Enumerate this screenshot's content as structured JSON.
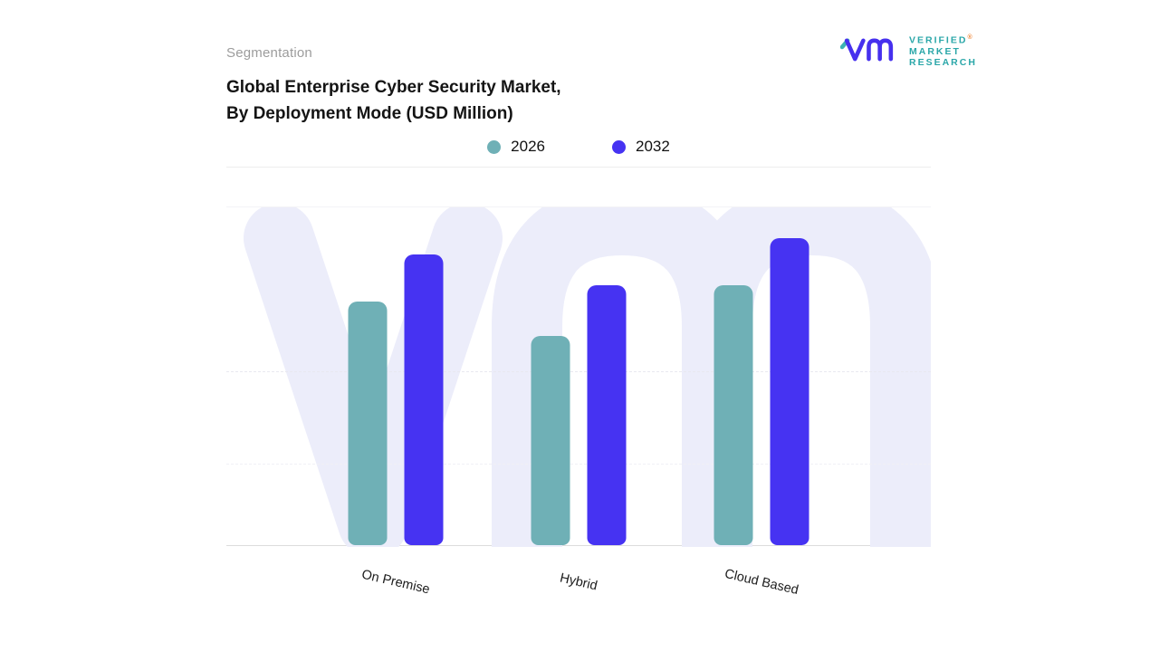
{
  "header": {
    "eyebrow": "Segmentation",
    "title_line1": "Global Enterprise Cyber Security Market,",
    "title_line2": "By Deployment Mode (USD Million)"
  },
  "logo": {
    "line1": "VERIFIED",
    "line2": "MARKET",
    "line3": "RESEARCH",
    "registered_mark": "®",
    "monogram_color": "#4630ee",
    "accent_color": "#3bb3b4",
    "text_color": "#2ba7a9"
  },
  "legend": {
    "items": [
      {
        "label": "2026",
        "color": "#6fb0b6"
      },
      {
        "label": "2032",
        "color": "#4633f2"
      }
    ]
  },
  "chart_data": {
    "type": "bar",
    "title": "Global Enterprise Cyber Security Market, By Deployment Mode (USD Million)",
    "categories": [
      "On Premise",
      "Hybrid",
      "Cloud Based"
    ],
    "series": [
      {
        "name": "2026",
        "color": "#6fb0b6",
        "values": [
          72,
          62,
          77
        ]
      },
      {
        "name": "2032",
        "color": "#4633f2",
        "values": [
          86,
          77,
          91
        ]
      }
    ],
    "ylabel": "USD Million",
    "ylim": [
      0,
      100
    ],
    "value_scale": "relative percent of plot height; numeric axis not labeled in source",
    "grid": "horizontal dashed",
    "legend_position": "top center",
    "watermark": "vmr-monogram"
  }
}
